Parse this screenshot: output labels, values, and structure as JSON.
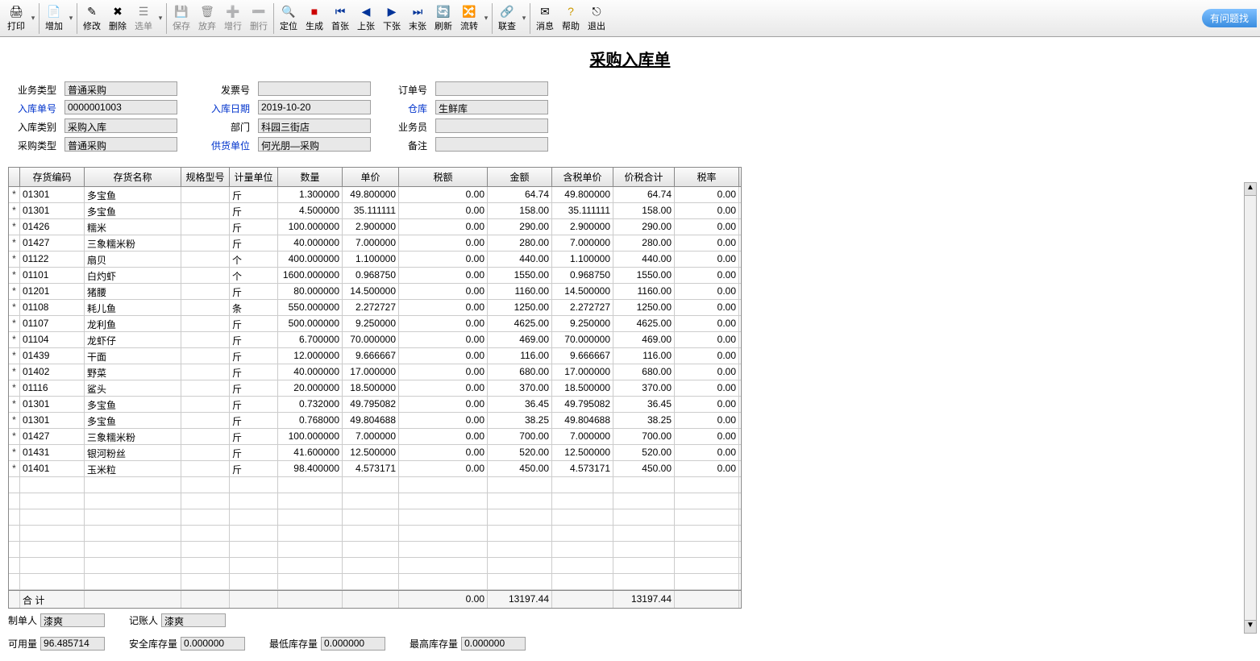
{
  "toolbar": {
    "print": "打印",
    "add": "增加",
    "edit": "修改",
    "delete": "删除",
    "select": "选单",
    "save": "保存",
    "abandon": "放弃",
    "addrow": "增行",
    "delrow": "删行",
    "locate": "定位",
    "generate": "生成",
    "first": "首张",
    "prev": "上张",
    "next": "下张",
    "last": "末张",
    "refresh": "刷新",
    "flow": "流转",
    "link": "联查",
    "msg": "消息",
    "help": "帮助",
    "exit": "退出"
  },
  "help_badge": "有问题找",
  "title": "采购入库单",
  "form": {
    "biztype_lbl": "业务类型",
    "biztype_val": "普通采购",
    "invoice_lbl": "发票号",
    "invoice_val": "",
    "order_lbl": "订单号",
    "order_val": "",
    "inno_lbl": "入库单号",
    "inno_val": "0000001003",
    "indate_lbl": "入库日期",
    "indate_val": "2019-10-20",
    "wh_lbl": "仓库",
    "wh_val": "生鲜库",
    "intype_lbl": "入库类别",
    "intype_val": "采购入库",
    "dept_lbl": "部门",
    "dept_val": "科园三街店",
    "clerk_lbl": "业务员",
    "clerk_val": "",
    "purtype_lbl": "采购类型",
    "purtype_val": "普通采购",
    "supplier_lbl": "供货单位",
    "supplier_val": "何光朋—采购",
    "memo_lbl": "备注",
    "memo_val": ""
  },
  "columns": [
    "",
    "存货编码",
    "存货名称",
    "规格型号",
    "计量单位",
    "数量",
    "单价",
    "税额",
    "金额",
    "含税单价",
    "价税合计",
    "税率"
  ],
  "rows": [
    {
      "code": "01301",
      "name": "多宝鱼",
      "spec": "",
      "unit": "斤",
      "qty": "1.300000",
      "price": "49.800000",
      "tax": "0.00",
      "amt": "64.74",
      "tprice": "49.800000",
      "total": "64.74",
      "rate": "0.00"
    },
    {
      "code": "01301",
      "name": "多宝鱼",
      "spec": "",
      "unit": "斤",
      "qty": "4.500000",
      "price": "35.111111",
      "tax": "0.00",
      "amt": "158.00",
      "tprice": "35.111111",
      "total": "158.00",
      "rate": "0.00"
    },
    {
      "code": "01426",
      "name": "糯米",
      "spec": "",
      "unit": "斤",
      "qty": "100.000000",
      "price": "2.900000",
      "tax": "0.00",
      "amt": "290.00",
      "tprice": "2.900000",
      "total": "290.00",
      "rate": "0.00"
    },
    {
      "code": "01427",
      "name": "三象糯米粉",
      "spec": "",
      "unit": "斤",
      "qty": "40.000000",
      "price": "7.000000",
      "tax": "0.00",
      "amt": "280.00",
      "tprice": "7.000000",
      "total": "280.00",
      "rate": "0.00"
    },
    {
      "code": "01122",
      "name": "扇贝",
      "spec": "",
      "unit": "个",
      "qty": "400.000000",
      "price": "1.100000",
      "tax": "0.00",
      "amt": "440.00",
      "tprice": "1.100000",
      "total": "440.00",
      "rate": "0.00"
    },
    {
      "code": "01101",
      "name": "白灼虾",
      "spec": "",
      "unit": "个",
      "qty": "1600.000000",
      "price": "0.968750",
      "tax": "0.00",
      "amt": "1550.00",
      "tprice": "0.968750",
      "total": "1550.00",
      "rate": "0.00"
    },
    {
      "code": "01201",
      "name": "猪腰",
      "spec": "",
      "unit": "斤",
      "qty": "80.000000",
      "price": "14.500000",
      "tax": "0.00",
      "amt": "1160.00",
      "tprice": "14.500000",
      "total": "1160.00",
      "rate": "0.00"
    },
    {
      "code": "01108",
      "name": "耗儿鱼",
      "spec": "",
      "unit": "条",
      "qty": "550.000000",
      "price": "2.272727",
      "tax": "0.00",
      "amt": "1250.00",
      "tprice": "2.272727",
      "total": "1250.00",
      "rate": "0.00"
    },
    {
      "code": "01107",
      "name": "龙利鱼",
      "spec": "",
      "unit": "斤",
      "qty": "500.000000",
      "price": "9.250000",
      "tax": "0.00",
      "amt": "4625.00",
      "tprice": "9.250000",
      "total": "4625.00",
      "rate": "0.00"
    },
    {
      "code": "01104",
      "name": "龙虾仔",
      "spec": "",
      "unit": "斤",
      "qty": "6.700000",
      "price": "70.000000",
      "tax": "0.00",
      "amt": "469.00",
      "tprice": "70.000000",
      "total": "469.00",
      "rate": "0.00"
    },
    {
      "code": "01439",
      "name": "干面",
      "spec": "",
      "unit": "斤",
      "qty": "12.000000",
      "price": "9.666667",
      "tax": "0.00",
      "amt": "116.00",
      "tprice": "9.666667",
      "total": "116.00",
      "rate": "0.00"
    },
    {
      "code": "01402",
      "name": "野菜",
      "spec": "",
      "unit": "斤",
      "qty": "40.000000",
      "price": "17.000000",
      "tax": "0.00",
      "amt": "680.00",
      "tprice": "17.000000",
      "total": "680.00",
      "rate": "0.00"
    },
    {
      "code": "01116",
      "name": "鲨头",
      "spec": "",
      "unit": "斤",
      "qty": "20.000000",
      "price": "18.500000",
      "tax": "0.00",
      "amt": "370.00",
      "tprice": "18.500000",
      "total": "370.00",
      "rate": "0.00"
    },
    {
      "code": "01301",
      "name": "多宝鱼",
      "spec": "",
      "unit": "斤",
      "qty": "0.732000",
      "price": "49.795082",
      "tax": "0.00",
      "amt": "36.45",
      "tprice": "49.795082",
      "total": "36.45",
      "rate": "0.00"
    },
    {
      "code": "01301",
      "name": "多宝鱼",
      "spec": "",
      "unit": "斤",
      "qty": "0.768000",
      "price": "49.804688",
      "tax": "0.00",
      "amt": "38.25",
      "tprice": "49.804688",
      "total": "38.25",
      "rate": "0.00"
    },
    {
      "code": "01427",
      "name": "三象糯米粉",
      "spec": "",
      "unit": "斤",
      "qty": "100.000000",
      "price": "7.000000",
      "tax": "0.00",
      "amt": "700.00",
      "tprice": "7.000000",
      "total": "700.00",
      "rate": "0.00"
    },
    {
      "code": "01431",
      "name": "银河粉丝",
      "spec": "",
      "unit": "斤",
      "qty": "41.600000",
      "price": "12.500000",
      "tax": "0.00",
      "amt": "520.00",
      "tprice": "12.500000",
      "total": "520.00",
      "rate": "0.00"
    },
    {
      "code": "01401",
      "name": "玉米粒",
      "spec": "",
      "unit": "斤",
      "qty": "98.400000",
      "price": "4.573171",
      "tax": "0.00",
      "amt": "450.00",
      "tprice": "4.573171",
      "total": "450.00",
      "rate": "0.00"
    }
  ],
  "empty_rows": 7,
  "totals": {
    "label": "合  计",
    "tax": "0.00",
    "amt": "13197.44",
    "total": "13197.44"
  },
  "footer": {
    "maker_lbl": "制单人",
    "maker_val": "漆爽",
    "poster_lbl": "记账人",
    "poster_val": "漆爽",
    "avail_lbl": "可用量",
    "avail_val": "96.485714",
    "safe_lbl": "安全库存量",
    "safe_val": "0.000000",
    "min_lbl": "最低库存量",
    "min_val": "0.000000",
    "max_lbl": "最高库存量",
    "max_val": "0.000000"
  }
}
